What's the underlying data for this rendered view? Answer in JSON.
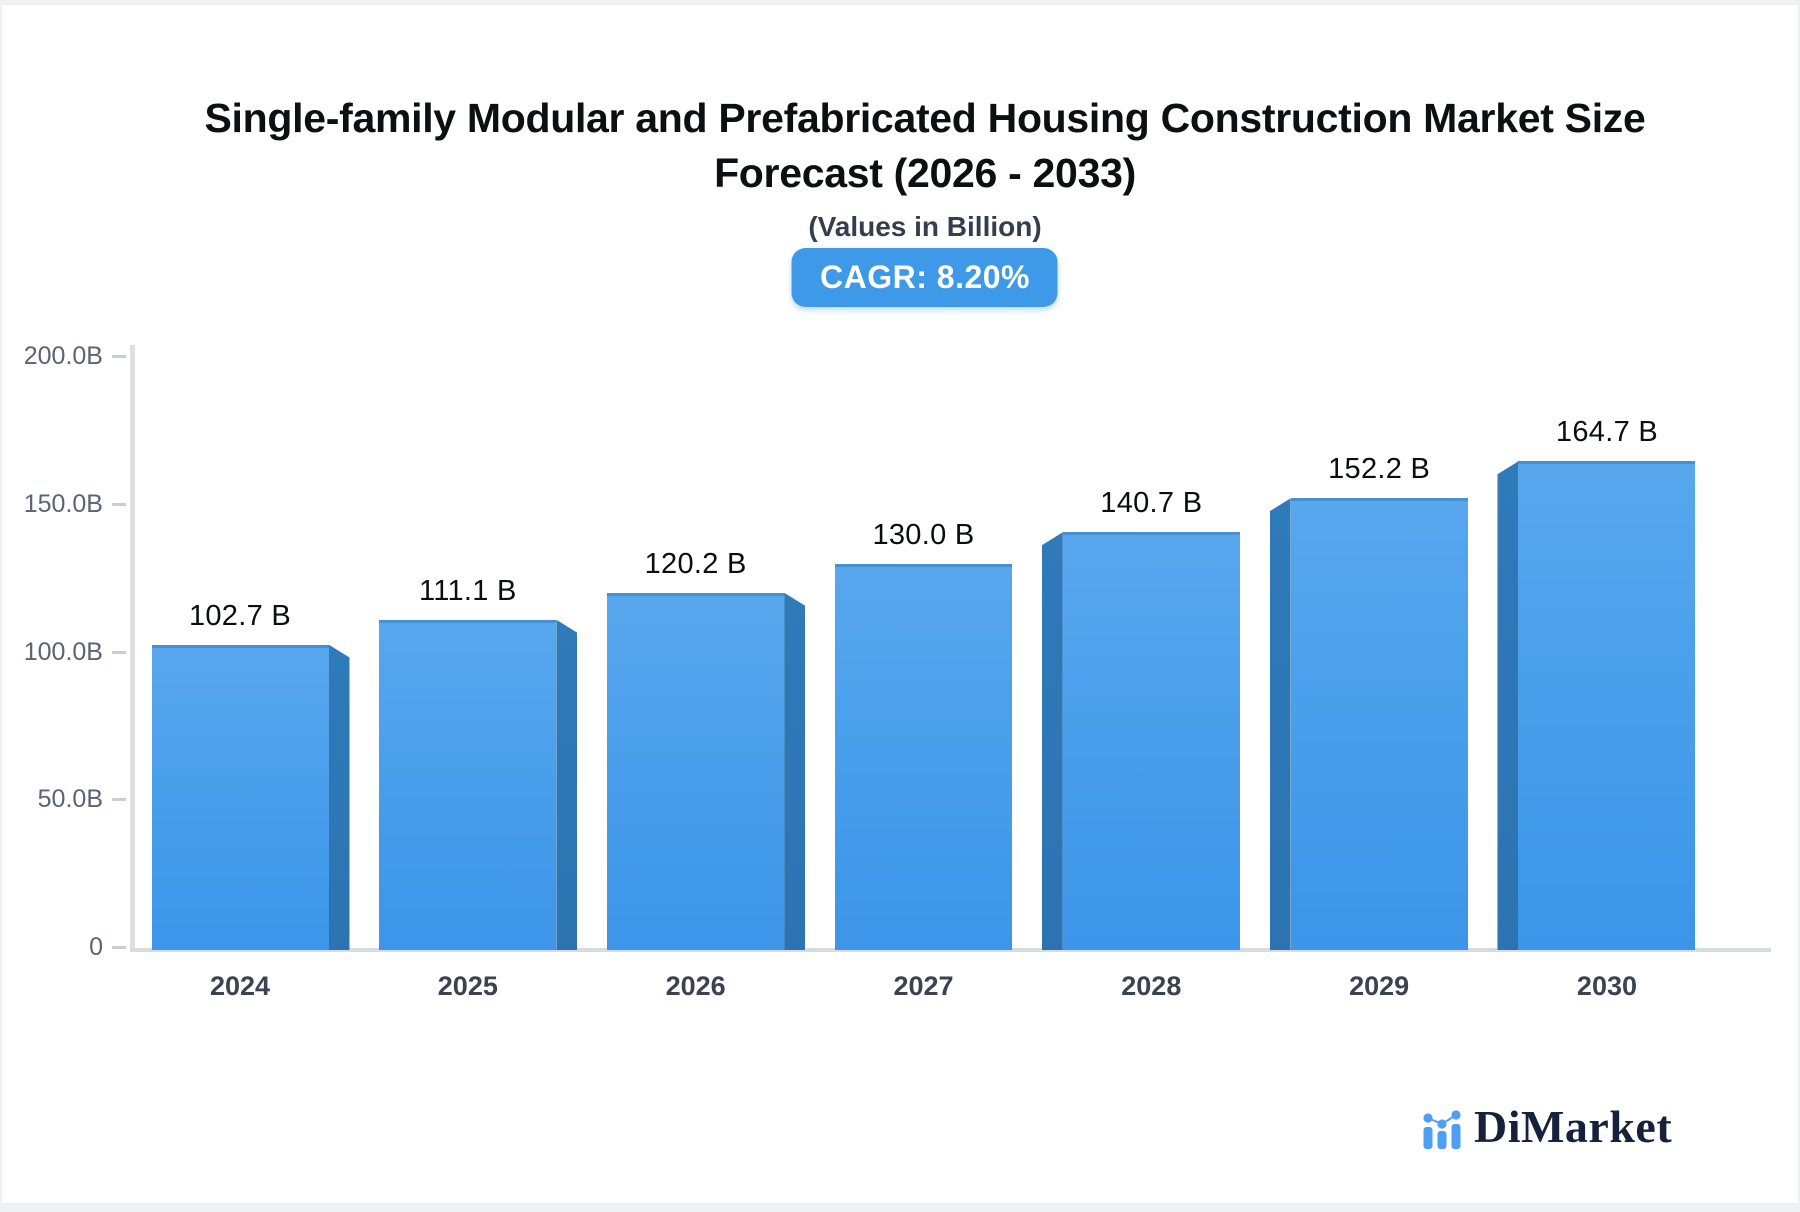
{
  "header": {
    "title_line1": "Single-family Modular and Prefabricated Housing Construction Market Size",
    "title_line2": "Forecast (2026 - 2033)",
    "subtitle": "(Values in Billion)",
    "cagr_badge": "CAGR: 8.20%"
  },
  "chart_data": {
    "type": "bar",
    "title": "Single-family Modular and Prefabricated Housing Construction Market Size Forecast (2026 - 2033)",
    "subtitle": "(Values in Billion)",
    "cagr_percent": 8.2,
    "categories": [
      "2024",
      "2025",
      "2026",
      "2027",
      "2028",
      "2029",
      "2030"
    ],
    "values": [
      102.7,
      111.1,
      120.2,
      130.0,
      140.7,
      152.2,
      164.7
    ],
    "bar_labels": [
      "102.7 B",
      "111.1 B",
      "120.2 B",
      "130.0 B",
      "140.7 B",
      "152.2 B",
      "164.7 B"
    ],
    "xlabel": "",
    "ylabel": "",
    "ylim": [
      0,
      200
    ],
    "ytick_labels": [
      "0",
      "50.0B",
      "100.0B",
      "150.0B",
      "200.0B"
    ],
    "grid": false,
    "legend": false,
    "style": "3d-extruded-columns"
  },
  "colors": {
    "bar_face_top": "#58a7ee",
    "bar_face_bottom": "#3c95e9",
    "bar_side": "#2e77b8",
    "badge_blue": "#3e9ae8",
    "axis_gray": "#dcdfe3",
    "logo_blue": "#4d9ff3",
    "logo_navy": "#16223b"
  },
  "branding": {
    "logo_text": "DiMarket",
    "logo_icon": "mini-bar-chart-icon"
  }
}
